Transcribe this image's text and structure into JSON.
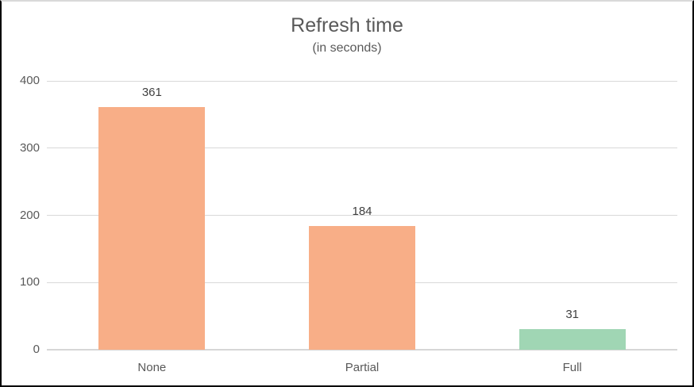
{
  "chart_data": {
    "type": "bar",
    "title": "Refresh time",
    "subtitle": "(in seconds)",
    "categories": [
      "None",
      "Partial",
      "Full"
    ],
    "values": [
      361,
      184,
      31
    ],
    "data_labels": [
      "361",
      "184",
      "31"
    ],
    "bar_colors": [
      "#f8ae87",
      "#f8ae87",
      "#a0d6b4"
    ],
    "xlabel": "",
    "ylabel": "",
    "ylim": [
      0,
      400
    ],
    "yticks": [
      0,
      100,
      200,
      300,
      400
    ],
    "grid": true,
    "legend": "none",
    "colors": {
      "grid": "#d9d9d9",
      "baseline": "#d6d6d6",
      "axis_text": "#595959",
      "value_text": "#3f3f3f",
      "title_text": "#595959",
      "background": "#ffffff",
      "frame_border": "#000000"
    }
  }
}
